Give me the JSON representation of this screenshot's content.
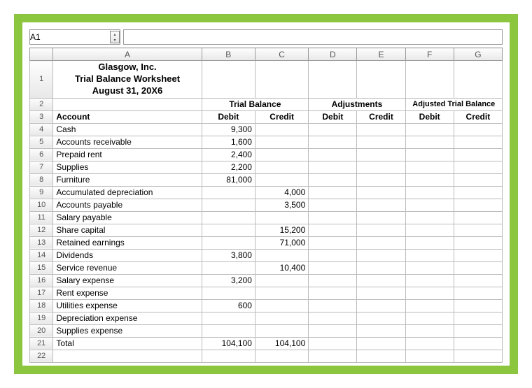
{
  "nameBox": "A1",
  "title": {
    "company": "Glasgow, Inc.",
    "report": "Trial Balance Worksheet",
    "date": "August 31, 20X6"
  },
  "columns": [
    "A",
    "B",
    "C",
    "D",
    "E",
    "F",
    "G"
  ],
  "headerGroups": {
    "trialBalance": "Trial Balance",
    "adjustments": "Adjustments",
    "adjustedTB": "Adjusted Trial Balance"
  },
  "subHeaders": {
    "account": "Account",
    "debit": "Debit",
    "credit": "Credit"
  },
  "rows": [
    {
      "n": 4,
      "a": "Cash",
      "b": "9,300",
      "c": ""
    },
    {
      "n": 5,
      "a": "Accounts receivable",
      "b": "1,600",
      "c": ""
    },
    {
      "n": 6,
      "a": "Prepaid rent",
      "b": "2,400",
      "c": ""
    },
    {
      "n": 7,
      "a": "Supplies",
      "b": "2,200",
      "c": ""
    },
    {
      "n": 8,
      "a": "Furniture",
      "b": "81,000",
      "c": ""
    },
    {
      "n": 9,
      "a": "Accumulated depreciation",
      "b": "",
      "c": "4,000"
    },
    {
      "n": 10,
      "a": "Accounts payable",
      "b": "",
      "c": "3,500"
    },
    {
      "n": 11,
      "a": "Salary payable",
      "b": "",
      "c": ""
    },
    {
      "n": 12,
      "a": "Share capital",
      "b": "",
      "c": "15,200"
    },
    {
      "n": 13,
      "a": "Retained earnings",
      "b": "",
      "c": "71,000"
    },
    {
      "n": 14,
      "a": "Dividends",
      "b": "3,800",
      "c": ""
    },
    {
      "n": 15,
      "a": "Service revenue",
      "b": "",
      "c": "10,400"
    },
    {
      "n": 16,
      "a": "Salary expense",
      "b": "3,200",
      "c": ""
    },
    {
      "n": 17,
      "a": "Rent expense",
      "b": "",
      "c": ""
    },
    {
      "n": 18,
      "a": "Utilities expense",
      "b": "600",
      "c": ""
    },
    {
      "n": 19,
      "a": "Depreciation expense",
      "b": "",
      "c": ""
    },
    {
      "n": 20,
      "a": "Supplies expense",
      "b": "",
      "c": ""
    }
  ],
  "total": {
    "n": 21,
    "a": "Total",
    "b": "104,100",
    "c": "104,100"
  },
  "blankRow": {
    "n": 22
  }
}
